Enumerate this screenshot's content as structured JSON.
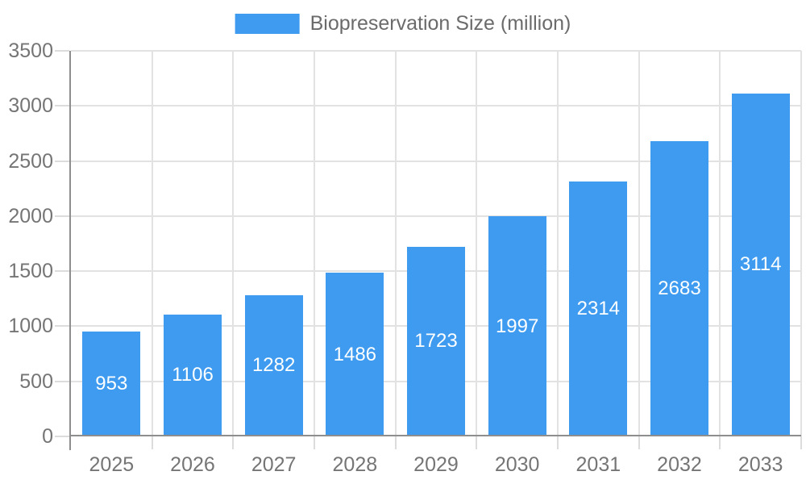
{
  "legend": {
    "label": "Biopreservation Size (million)"
  },
  "chart_data": {
    "type": "bar",
    "title": "Biopreservation Size (million)",
    "categories": [
      "2025",
      "2026",
      "2027",
      "2028",
      "2029",
      "2030",
      "2031",
      "2032",
      "2033"
    ],
    "values": [
      953,
      1106,
      1282,
      1486,
      1723,
      1997,
      2314,
      2683,
      3114
    ],
    "series": [
      {
        "name": "Biopreservation Size (million)",
        "values": [
          953,
          1106,
          1282,
          1486,
          1723,
          1997,
          2314,
          2683,
          3114
        ]
      }
    ],
    "xlabel": "",
    "ylabel": "",
    "ylim": [
      0,
      3500
    ],
    "yticks": [
      0,
      500,
      1000,
      1500,
      2000,
      2500,
      3000,
      3500
    ],
    "grid": true,
    "legend_position": "top-center",
    "value_label_position": "inside-center",
    "colors": {
      "bar": "#3E9BF0",
      "axis_line": "#8E8E8E",
      "gridline": "#E2E2E2",
      "tick": "#DCDCDC",
      "axis_text": "#757575",
      "legend_text": "#6B6B6B",
      "bar_label_text": "#FFFFFF",
      "background": "#FFFFFF"
    }
  }
}
